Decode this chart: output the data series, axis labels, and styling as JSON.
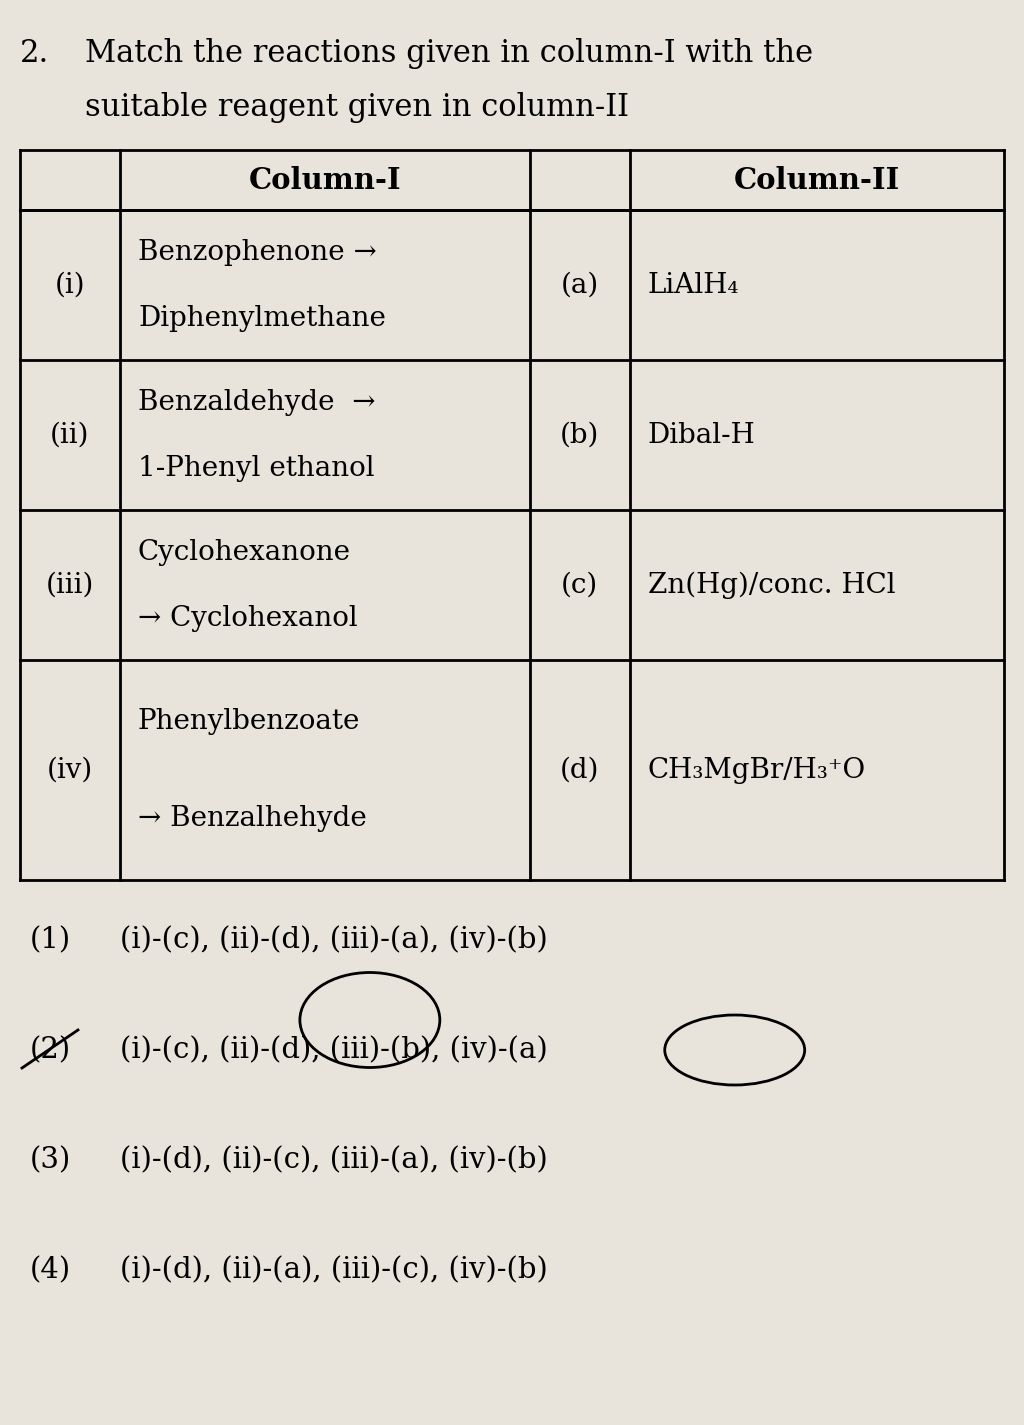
{
  "title_line1": "Match the reactions given in column-I with the",
  "title_line2": "suitable reagent given in column-II",
  "question_number": "2.",
  "background_color": "#e8e4dc",
  "table_bg": "#ddd8cc",
  "table": {
    "col1_header": "Column-I",
    "col2_header": "Column-II",
    "rows": [
      {
        "roman": "(i)",
        "col1_line1": "Benzophenone →",
        "col1_line2": "Diphenylmethane",
        "letter": "(a)",
        "col2": "LiAlH₄"
      },
      {
        "roman": "(ii)",
        "col1_line1": "Benzaldehyde  →",
        "col1_line2": "1-Phenyl ethanol",
        "letter": "(b)",
        "col2": "Dibal-H"
      },
      {
        "roman": "(iii)",
        "col1_line1": "Cyclohexanone",
        "col1_line2": "→ Cyclohexanol",
        "letter": "(c)",
        "col2": "Zn(Hg)/conc. HCl"
      },
      {
        "roman": "(iv)",
        "col1_line1": "Phenylbenzoate",
        "col1_line2": "→ Benzalhehyde",
        "letter": "(d)",
        "col2": "CH₃MgBr/H₃⁺O"
      }
    ]
  },
  "options": [
    {
      "num": "(1)",
      "text": "(i)-(c), (ii)-(d), (iii)-(a), (iv)-(b)",
      "circled_part": null,
      "struck": false
    },
    {
      "num": "(2)",
      "text": "(i)-(c), (ii)-(d), (iii)-(b), (iv)-(a)",
      "circled_part": "both",
      "struck": true
    },
    {
      "num": "(3)",
      "text": "(i)-(d), (ii)-(c), (iii)-(a), (iv)-(b)",
      "circled_part": null,
      "struck": false
    },
    {
      "num": "(4)",
      "text": "(i)-(d), (ii)-(a), (iii)-(c), (iv)-(b)",
      "circled_part": null,
      "struck": false
    }
  ],
  "font_size_title": 22,
  "font_size_header": 21,
  "font_size_cell": 20,
  "font_size_option": 21,
  "font_size_qnum": 22
}
